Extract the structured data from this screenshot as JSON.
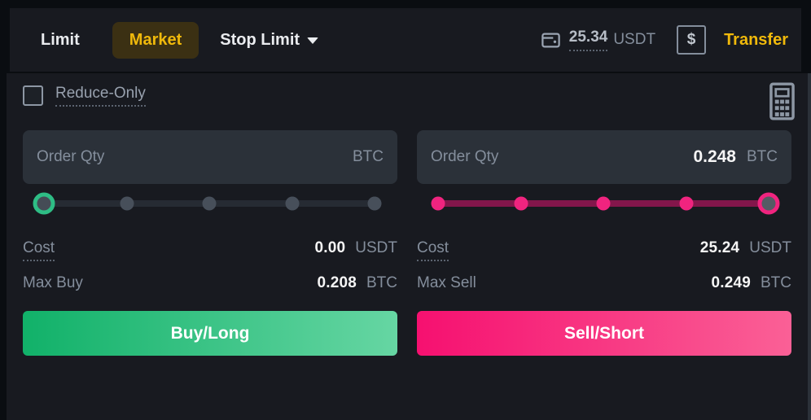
{
  "header": {
    "tabs": [
      {
        "label": "Limit"
      },
      {
        "label": "Market"
      },
      {
        "label": "Stop Limit"
      }
    ],
    "active_tab": "Market",
    "balance": {
      "amount": "25.34",
      "currency": "USDT"
    },
    "dollar_symbol": "$",
    "transfer_label": "Transfer"
  },
  "reduce_only": {
    "label": "Reduce-Only",
    "checked": false
  },
  "buy_panel": {
    "qty": {
      "label": "Order Qty",
      "value": "",
      "unit": "BTC"
    },
    "slider_percent": 0,
    "cost": {
      "label": "Cost",
      "value": "0.00",
      "unit": "USDT"
    },
    "max": {
      "label": "Max Buy",
      "value": "0.208",
      "unit": "BTC"
    },
    "button_label": "Buy/Long"
  },
  "sell_panel": {
    "qty": {
      "label": "Order Qty",
      "value": "0.248",
      "unit": "BTC"
    },
    "slider_percent": 100,
    "cost": {
      "label": "Cost",
      "value": "25.24",
      "unit": "USDT"
    },
    "max": {
      "label": "Max Sell",
      "value": "0.249",
      "unit": "BTC"
    },
    "button_label": "Sell/Short"
  },
  "icons": {
    "wallet": "wallet-icon",
    "dollar": "dollar-transfer-icon",
    "calculator": "calculator-icon",
    "caret": "chevron-down-icon"
  },
  "colors": {
    "accent_gold": "#f0b90b",
    "buy_green": "#2ebd85",
    "sell_pink": "#f0247f",
    "panel_bg": "#181a20",
    "input_bg": "#2b3139",
    "text_secondary": "#848e9c",
    "text_primary": "#eaecef"
  }
}
